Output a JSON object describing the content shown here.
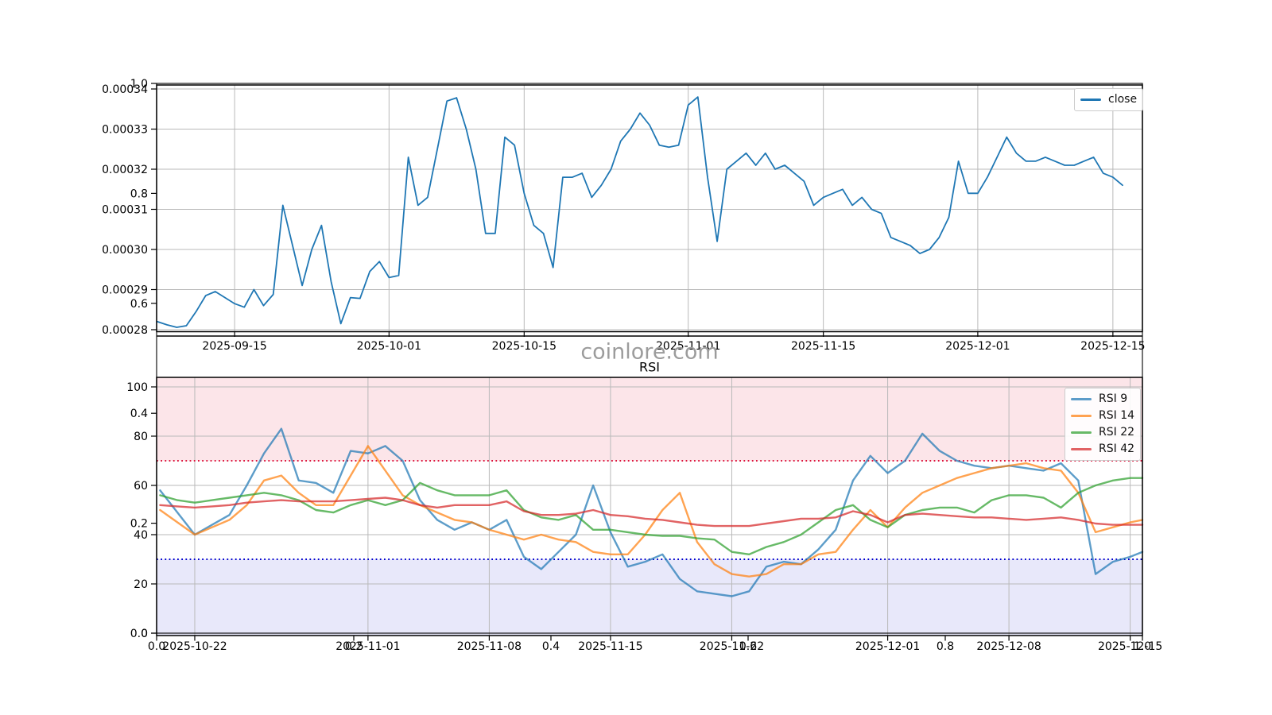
{
  "watermark": "coinlore.com",
  "rsi_title": "RSI",
  "overlay_axis": {
    "y_tick_labels": [
      "1.0",
      "0.8",
      "0.6",
      "0.4",
      "0.2",
      "0.0"
    ],
    "x_tick_labels": [
      "0.0",
      "0.2",
      "0.4",
      "0.6",
      "0.8",
      "1.0"
    ]
  },
  "chart_data": [
    {
      "type": "line",
      "title": "",
      "legend_position": "upper right",
      "grid": true,
      "ylim": [
        0.000279,
        0.000341
      ],
      "y_ticks": [
        {
          "value": 0.00028,
          "label": "0.00028"
        },
        {
          "value": 0.00029,
          "label": "0.00029"
        },
        {
          "value": 0.0003,
          "label": "0.00030"
        },
        {
          "value": 0.00031,
          "label": "0.00031"
        },
        {
          "value": 0.00032,
          "label": "0.00032"
        },
        {
          "value": 0.00033,
          "label": "0.00033"
        },
        {
          "value": 0.00034,
          "label": "0.00034"
        }
      ],
      "x_tick_labels": [
        "2025-09-15",
        "2025-10-01",
        "2025-10-15",
        "2025-11-01",
        "2025-11-15",
        "2025-12-01",
        "2025-12-15"
      ],
      "x": [
        "2025-09-07",
        "2025-09-08",
        "2025-09-09",
        "2025-09-10",
        "2025-09-11",
        "2025-09-12",
        "2025-09-13",
        "2025-09-14",
        "2025-09-15",
        "2025-09-16",
        "2025-09-17",
        "2025-09-18",
        "2025-09-19",
        "2025-09-20",
        "2025-09-21",
        "2025-09-22",
        "2025-09-23",
        "2025-09-24",
        "2025-09-25",
        "2025-09-26",
        "2025-09-27",
        "2025-09-28",
        "2025-09-29",
        "2025-09-30",
        "2025-10-01",
        "2025-10-02",
        "2025-10-03",
        "2025-10-04",
        "2025-10-05",
        "2025-10-06",
        "2025-10-07",
        "2025-10-08",
        "2025-10-09",
        "2025-10-10",
        "2025-10-11",
        "2025-10-12",
        "2025-10-13",
        "2025-10-14",
        "2025-10-15",
        "2025-10-16",
        "2025-10-17",
        "2025-10-18",
        "2025-10-19",
        "2025-10-20",
        "2025-10-21",
        "2025-10-22",
        "2025-10-23",
        "2025-10-24",
        "2025-10-25",
        "2025-10-26",
        "2025-10-27",
        "2025-10-28",
        "2025-10-29",
        "2025-10-30",
        "2025-10-31",
        "2025-11-01",
        "2025-11-02",
        "2025-11-03",
        "2025-11-04",
        "2025-11-05",
        "2025-11-06",
        "2025-11-07",
        "2025-11-08",
        "2025-11-09",
        "2025-11-10",
        "2025-11-11",
        "2025-11-12",
        "2025-11-13",
        "2025-11-14",
        "2025-11-15",
        "2025-11-16",
        "2025-11-17",
        "2025-11-18",
        "2025-11-19",
        "2025-11-20",
        "2025-11-21",
        "2025-11-22",
        "2025-11-23",
        "2025-11-24",
        "2025-11-25",
        "2025-11-26",
        "2025-11-27",
        "2025-11-28",
        "2025-11-29",
        "2025-11-30",
        "2025-12-01",
        "2025-12-02",
        "2025-12-03",
        "2025-12-04",
        "2025-12-05",
        "2025-12-06",
        "2025-12-07",
        "2025-12-08",
        "2025-12-09",
        "2025-12-10",
        "2025-12-11",
        "2025-12-12",
        "2025-12-13",
        "2025-12-14",
        "2025-12-15",
        "2025-12-16"
      ],
      "series": [
        {
          "name": "close",
          "color": "#1f77b4",
          "values": [
            0.000282,
            0.0002812,
            0.0002806,
            0.000281,
            0.0002845,
            0.0002885,
            0.0002895,
            0.000288,
            0.0002865,
            0.0002856,
            0.00029,
            0.000286,
            0.0002888,
            0.000311,
            0.000301,
            0.000291,
            0.0003,
            0.000306,
            0.000292,
            0.0002815,
            0.000288,
            0.0002878,
            0.0002945,
            0.000297,
            0.000293,
            0.0002935,
            0.000323,
            0.000311,
            0.000313,
            0.000325,
            0.000337,
            0.0003378,
            0.00033,
            0.00032,
            0.000304,
            0.000304,
            0.000328,
            0.000326,
            0.000314,
            0.000306,
            0.000304,
            0.0002955,
            0.000318,
            0.000318,
            0.000319,
            0.000313,
            0.000316,
            0.00032,
            0.000327,
            0.00033,
            0.000334,
            0.000331,
            0.000326,
            0.0003255,
            0.000326,
            0.000336,
            0.000338,
            0.000318,
            0.000302,
            0.00032,
            0.000322,
            0.000324,
            0.000321,
            0.000324,
            0.00032,
            0.000321,
            0.000319,
            0.000317,
            0.000311,
            0.000313,
            0.000314,
            0.000315,
            0.000311,
            0.000313,
            0.00031,
            0.000309,
            0.000303,
            0.000302,
            0.000301,
            0.000299,
            0.0003,
            0.000303,
            0.000308,
            0.000322,
            0.000314,
            0.000314,
            0.000318,
            0.000323,
            0.000328,
            0.000324,
            0.000322,
            0.000322,
            0.000323,
            0.000322,
            0.000321,
            0.000321,
            0.000322,
            0.000323,
            0.000319,
            0.000318,
            0.000316
          ]
        }
      ]
    },
    {
      "type": "line",
      "title": "RSI",
      "legend_position": "upper right",
      "grid": true,
      "ylim": [
        0,
        100
      ],
      "y_ticks": [
        {
          "value": 0,
          "label": "0"
        },
        {
          "value": 20,
          "label": "20"
        },
        {
          "value": 40,
          "label": "40"
        },
        {
          "value": 60,
          "label": "60"
        },
        {
          "value": 80,
          "label": "80"
        },
        {
          "value": 100,
          "label": "100"
        }
      ],
      "x_tick_labels": [
        "2025-10-22",
        "2025-11-01",
        "2025-11-08",
        "2025-11-15",
        "2025-11-22",
        "2025-12-01",
        "2025-12-08",
        "2025-12-15"
      ],
      "hlines": [
        {
          "value": 70,
          "color": "#dc143c",
          "style": "dotted"
        },
        {
          "value": 30,
          "color": "#0000cd",
          "style": "dotted"
        }
      ],
      "bands": [
        {
          "from": 70,
          "to": 100,
          "color": "rgba(230,40,70,0.12)"
        },
        {
          "from": 0,
          "to": 30,
          "color": "rgba(45,45,205,0.11)"
        }
      ],
      "x": [
        "2025-10-20",
        "2025-10-21",
        "2025-10-22",
        "2025-10-23",
        "2025-10-24",
        "2025-10-25",
        "2025-10-26",
        "2025-10-27",
        "2025-10-28",
        "2025-10-29",
        "2025-10-30",
        "2025-10-31",
        "2025-11-01",
        "2025-11-02",
        "2025-11-03",
        "2025-11-04",
        "2025-11-05",
        "2025-11-06",
        "2025-11-07",
        "2025-11-08",
        "2025-11-09",
        "2025-11-10",
        "2025-11-11",
        "2025-11-12",
        "2025-11-13",
        "2025-11-14",
        "2025-11-15",
        "2025-11-16",
        "2025-11-17",
        "2025-11-18",
        "2025-11-19",
        "2025-11-20",
        "2025-11-21",
        "2025-11-22",
        "2025-11-23",
        "2025-11-24",
        "2025-11-25",
        "2025-11-26",
        "2025-11-27",
        "2025-11-28",
        "2025-11-29",
        "2025-11-30",
        "2025-12-01",
        "2025-12-02",
        "2025-12-03",
        "2025-12-04",
        "2025-12-05",
        "2025-12-06",
        "2025-12-07",
        "2025-12-08",
        "2025-12-09",
        "2025-12-10",
        "2025-12-11",
        "2025-12-12",
        "2025-12-13",
        "2025-12-14",
        "2025-12-15",
        "2025-12-16"
      ],
      "series": [
        {
          "name": "RSI 9",
          "color": "rgba(31,119,180,0.72)",
          "values": [
            58,
            49,
            40,
            44,
            48,
            60,
            73,
            83,
            62,
            61,
            57,
            74,
            73,
            76,
            70,
            54,
            46,
            42,
            45,
            42,
            46,
            31,
            26,
            33,
            40,
            60,
            41,
            27,
            29,
            32,
            22,
            17,
            16,
            15,
            17,
            27,
            29,
            28,
            34,
            42,
            62,
            72,
            65,
            70,
            81,
            74,
            70,
            68,
            67,
            68,
            67,
            66,
            69,
            62,
            24,
            29,
            31,
            33
          ]
        },
        {
          "name": "RSI 14",
          "color": "rgba(255,127,14,0.72)",
          "values": [
            50,
            45,
            40,
            43,
            46,
            52,
            62,
            64,
            57,
            52,
            52,
            64,
            76,
            66,
            56,
            52,
            49,
            46,
            45,
            42,
            40,
            38,
            40,
            38,
            37,
            33,
            32,
            32,
            40,
            50,
            57,
            37,
            28,
            24,
            23,
            24,
            28,
            28,
            32,
            33,
            42,
            50,
            43,
            51,
            57,
            60,
            63,
            65,
            67,
            68,
            69,
            67,
            66,
            57,
            41,
            43,
            45,
            46
          ]
        },
        {
          "name": "RSI 22",
          "color": "rgba(44,160,44,0.72)",
          "values": [
            56,
            54,
            53,
            54,
            55,
            56,
            57,
            56,
            54,
            50,
            49,
            52,
            54,
            52,
            54,
            61,
            58,
            56,
            56,
            56,
            58,
            50,
            47,
            46,
            48,
            42,
            42,
            41,
            40,
            39.5,
            39.5,
            38.5,
            38,
            33,
            32,
            35,
            37,
            40,
            45,
            50,
            52,
            46,
            43,
            48,
            50,
            51,
            51,
            49,
            54,
            56,
            56,
            55,
            51,
            57,
            60,
            62,
            63,
            63
          ]
        },
        {
          "name": "RSI 42",
          "color": "rgba(214,39,40,0.72)",
          "values": [
            52,
            51.5,
            51,
            51.5,
            52,
            53,
            53.5,
            54,
            53.5,
            53.5,
            53.5,
            54,
            54.5,
            55,
            54,
            52,
            51,
            52,
            52,
            52,
            53.5,
            49.5,
            48,
            48,
            48.5,
            50,
            48,
            47.5,
            46.5,
            46,
            45,
            44,
            43.5,
            43.5,
            43.5,
            44.5,
            45.5,
            46.5,
            46.5,
            47,
            49.5,
            48,
            45,
            48,
            48.5,
            48,
            47.5,
            47,
            47,
            46.5,
            46,
            46.5,
            47,
            46,
            44.5,
            44,
            44,
            44
          ]
        }
      ]
    }
  ]
}
